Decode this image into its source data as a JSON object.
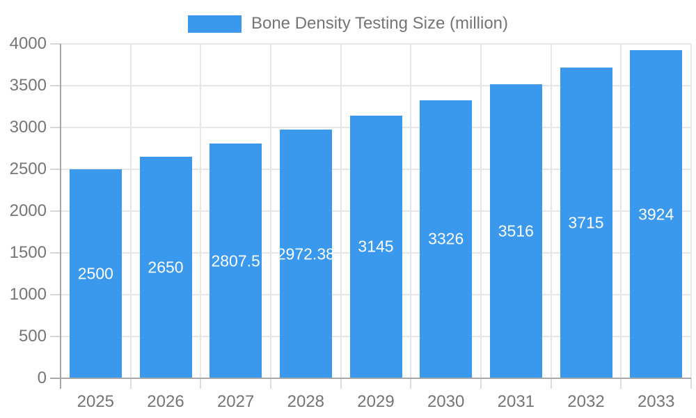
{
  "legend": {
    "label": "Bone Density Testing Size (million)"
  },
  "chart_data": {
    "type": "bar",
    "title": "Bone Density Testing Size (million)",
    "categories": [
      "2025",
      "2026",
      "2027",
      "2028",
      "2029",
      "2030",
      "2031",
      "2032",
      "2033"
    ],
    "values": [
      2500,
      2650,
      2807.5,
      2972.38,
      3145,
      3326,
      3516,
      3715,
      3924
    ],
    "bar_labels": [
      "2500",
      "2650",
      "2807.5",
      "2972.38",
      "3145",
      "3326",
      "3516",
      "3715",
      "3924"
    ],
    "xlabel": "",
    "ylabel": "",
    "ylim": [
      0,
      4000
    ],
    "ytick_step": 500,
    "yticks": [
      "0",
      "500",
      "1000",
      "1500",
      "2000",
      "2500",
      "3000",
      "3500",
      "4000"
    ],
    "grid": true,
    "legend_position": "top-center",
    "bar_color": "#3A99EC",
    "bar_label_color": "#ffffff",
    "axis_text_color": "#757575",
    "gridline_color": "#e6e6e6",
    "axis_line_color": "#a6a6a6"
  }
}
